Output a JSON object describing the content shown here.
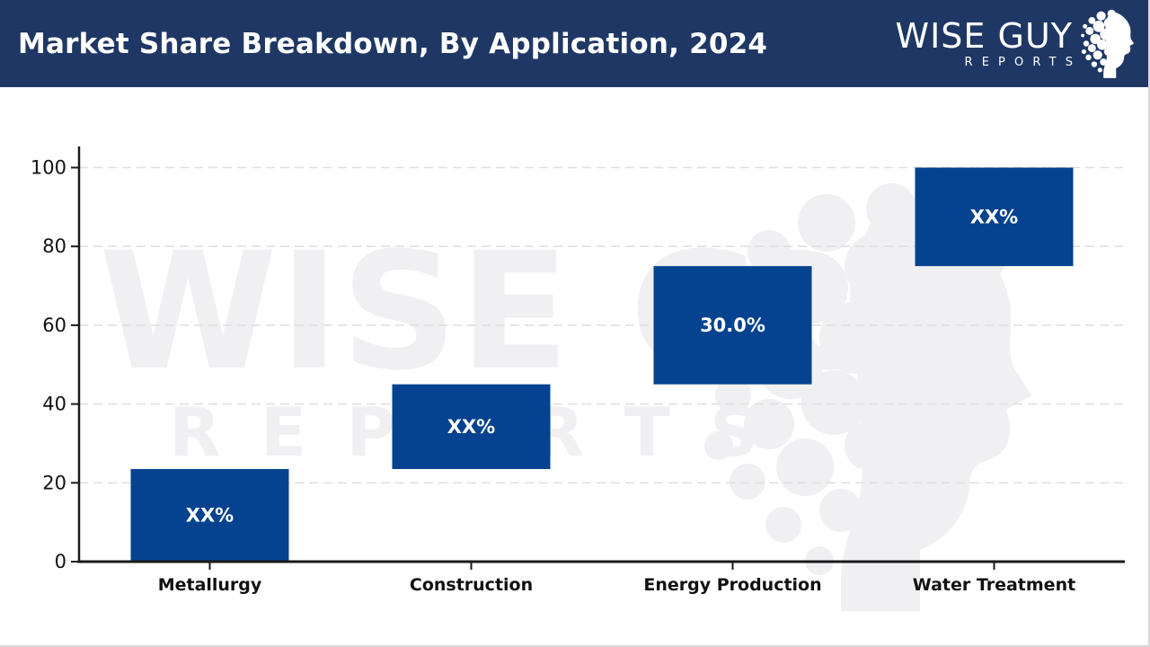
{
  "header": {
    "title": "Market Share Breakdown, By Application, 2024",
    "logo": {
      "brand": "WISE GUY",
      "sub": "REPORTS"
    }
  },
  "watermark": {
    "brand": "WISE GUY",
    "sub": "REPORTS"
  },
  "colors": {
    "header_bg": "#1f3764",
    "bar": "#05428f",
    "bar_label": "#ffffff",
    "grid": "#e0e0e0",
    "axis": "#1a1a1a",
    "watermark": "#f0f0f2"
  },
  "chart_data": {
    "type": "bar",
    "subtype": "waterfall",
    "title": "Market Share Breakdown, By Application, 2024",
    "categories": [
      "Metallurgy",
      "Construction",
      "Energy Production",
      "Water Treatment"
    ],
    "segments": [
      {
        "category": "Metallurgy",
        "value_label": "XX%",
        "start": 0,
        "end": 23.5
      },
      {
        "category": "Construction",
        "value_label": "XX%",
        "start": 23.5,
        "end": 45
      },
      {
        "category": "Energy Production",
        "value_label": "30.0%",
        "start": 45,
        "end": 75
      },
      {
        "category": "Water Treatment",
        "value_label": "XX%",
        "start": 75,
        "end": 100
      }
    ],
    "ylim": [
      0,
      100
    ],
    "yticks": [
      0,
      20,
      40,
      60,
      80,
      100
    ],
    "xlabel": "",
    "ylabel": "",
    "grid": true,
    "legend": null
  }
}
